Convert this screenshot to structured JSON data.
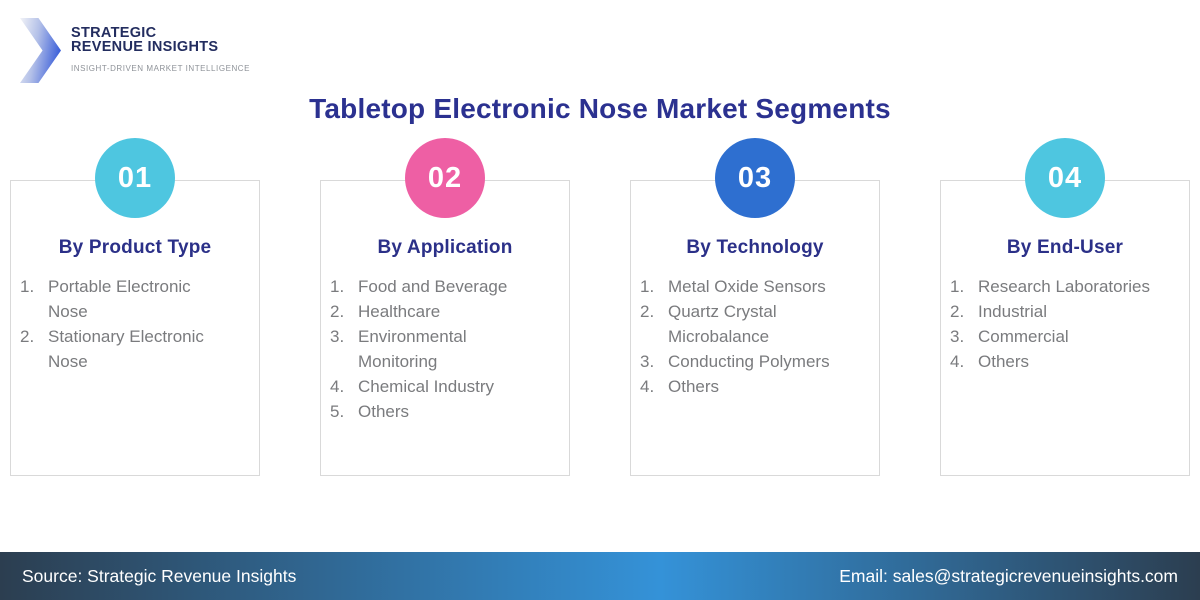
{
  "brand": {
    "logo_icon": "chevron-right-arrow-icon",
    "name_line1": "STRATEGIC",
    "name_line2": "REVENUE INSIGHTS",
    "tagline": "INSIGHT-DRIVEN MARKET INTELLIGENCE"
  },
  "title": "Tabletop Electronic Nose Market Segments",
  "segments": [
    {
      "number": "01",
      "badge_color": "#4ec6e0",
      "heading": "By Product Type",
      "items": [
        "Portable Electronic Nose",
        "Stationary Electronic Nose"
      ]
    },
    {
      "number": "02",
      "badge_color": "#ee5fa4",
      "heading": "By Application",
      "items": [
        "Food and Beverage",
        "Healthcare",
        "Environmental Monitoring",
        "Chemical Industry",
        "Others"
      ]
    },
    {
      "number": "03",
      "badge_color": "#2e6fd0",
      "heading": "By Technology",
      "items": [
        "Metal Oxide Sensors",
        "Quartz Crystal Microbalance",
        "Conducting Polymers",
        "Others"
      ]
    },
    {
      "number": "04",
      "badge_color": "#4ec6e0",
      "heading": "By End-User",
      "items": [
        "Research Laboratories",
        "Industrial",
        "Commercial",
        "Others"
      ]
    }
  ],
  "footer": {
    "source": "Source: Strategic Revenue Insights",
    "email": "Email: sales@strategicrevenueinsights.com"
  },
  "colors": {
    "brand-ink": "#232d5f",
    "tagline-ink": "#8e9298",
    "title-ink": "#2b3190",
    "heading-ink": "#2b3088",
    "list-ink": "#7a7b7e",
    "card-border": "#d9d9d9",
    "footer-edge": "#2c3e50",
    "footer-center": "#3492d8"
  }
}
